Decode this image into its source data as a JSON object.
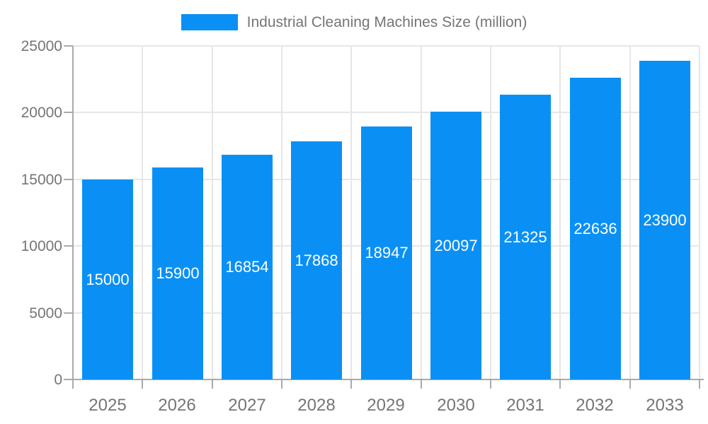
{
  "legend": {
    "label": "Industrial Cleaning Machines Size (million)"
  },
  "chart_data": {
    "type": "bar",
    "title": "Industrial Cleaning Machines Size (million)",
    "categories": [
      "2025",
      "2026",
      "2027",
      "2028",
      "2029",
      "2030",
      "2031",
      "2032",
      "2033"
    ],
    "values": [
      15000,
      15900,
      16854,
      17868,
      18947,
      20097,
      21325,
      22636,
      23900
    ],
    "xlabel": "",
    "ylabel": "",
    "ylim": [
      0,
      25000
    ],
    "yticks": [
      0,
      5000,
      10000,
      15000,
      20000,
      25000
    ],
    "grid": true,
    "legend_position": "top-center",
    "value_labels_inside_bars": true,
    "colors": {
      "bar": "#0a90f5",
      "grid": "#e6e6e6",
      "axis": "#aaaaaa",
      "tick_text": "#757575",
      "legend_text": "#757575",
      "value_label_text": "#ffffff",
      "background": "#ffffff"
    }
  }
}
